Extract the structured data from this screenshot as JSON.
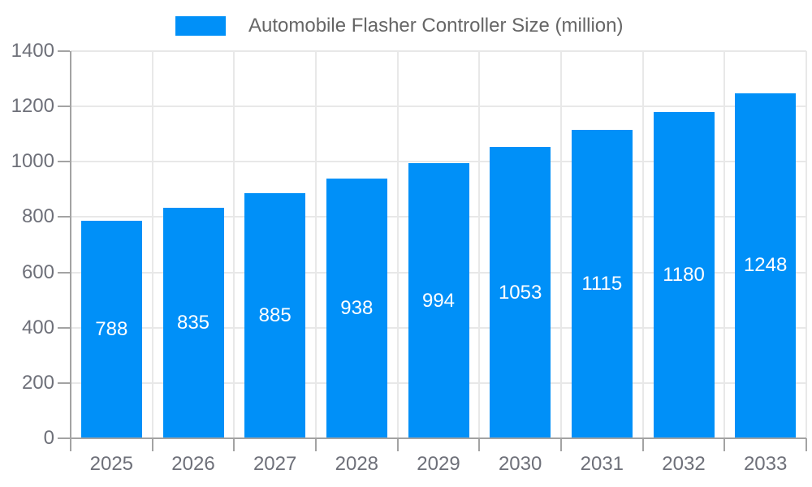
{
  "legend": {
    "label": "Automobile Flasher Controller Size (million)"
  },
  "chart_data": {
    "type": "bar",
    "title": "Automobile Flasher Controller Size (million)",
    "categories": [
      "2025",
      "2026",
      "2027",
      "2028",
      "2029",
      "2030",
      "2031",
      "2032",
      "2033"
    ],
    "values": [
      788,
      835,
      885,
      938,
      994,
      1053,
      1115,
      1180,
      1248
    ],
    "series_name": "Automobile Flasher Controller Size (million)",
    "xlabel": "",
    "ylabel": "",
    "ylim": [
      0,
      1400
    ],
    "yticks": [
      0,
      200,
      400,
      600,
      800,
      1000,
      1200,
      1400
    ],
    "grid": "on",
    "legend_position": "top-center",
    "bar_labels_inside": true,
    "colors": {
      "bar": "#0090F8",
      "bar_label": "#FFFFFF",
      "axis_label": "#6E7079",
      "legend_text": "#666666",
      "gridline": "#E8E8E8",
      "axis_line": "#A3A3A3"
    }
  }
}
